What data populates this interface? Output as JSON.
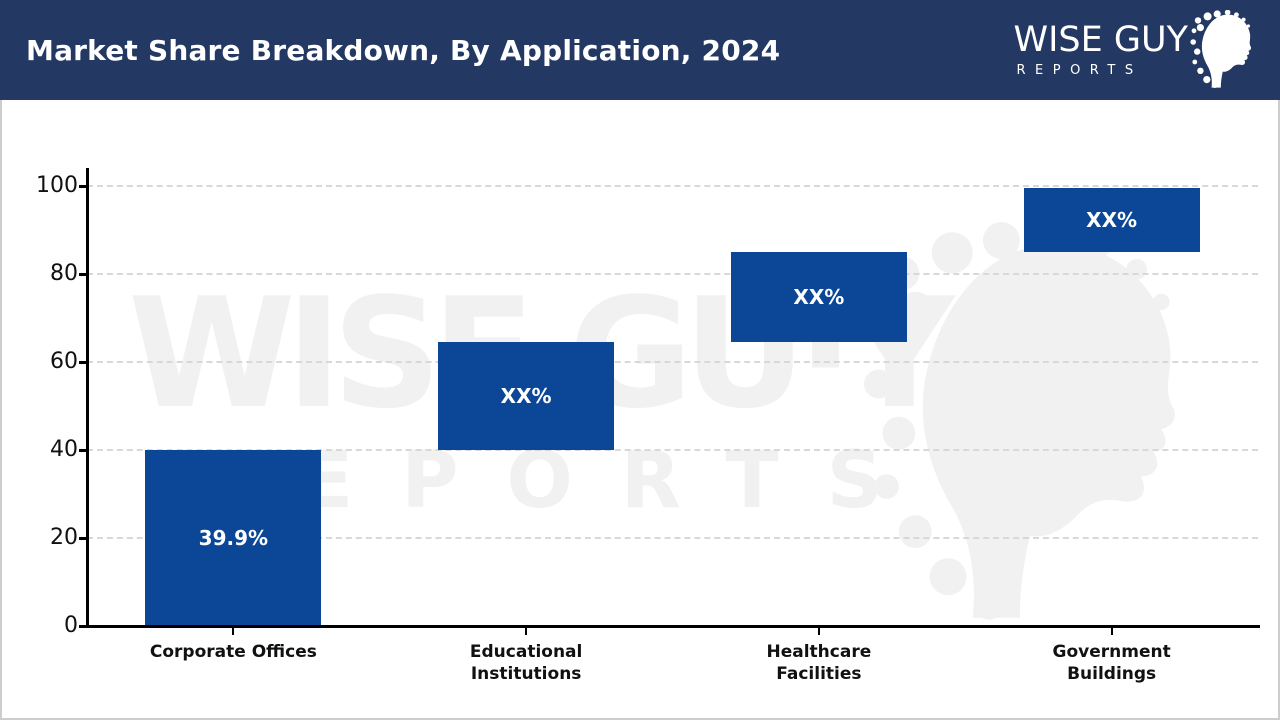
{
  "header": {
    "title": "Market Share Breakdown, By Application, 2024",
    "logo": {
      "wordmark": "WISE GUY",
      "subtext": "REPORTS"
    }
  },
  "watermark": {
    "line1": "WISE GU·Y",
    "line2": "REPORTS"
  },
  "chart_data": {
    "type": "bar",
    "variant": "waterfall",
    "title": "Market Share Breakdown, By Application, 2024",
    "unit": "%",
    "categories": [
      "Corporate Offices",
      "Educational Institutions",
      "Healthcare Facilities",
      "Government Buildings"
    ],
    "categories_lines": [
      [
        "Corporate Offices"
      ],
      [
        "Educational",
        "Institutions"
      ],
      [
        "Healthcare",
        "Facilities"
      ],
      [
        "Government",
        "Buildings"
      ]
    ],
    "series": [
      {
        "name": "Market share",
        "starts": [
          0,
          39.9,
          64.5,
          85.0
        ],
        "ends": [
          39.9,
          64.5,
          85.0,
          99.6
        ],
        "labels": [
          "39.9%",
          "XX%",
          "XX%",
          "XX%"
        ]
      }
    ],
    "yticks": [
      0,
      20,
      40,
      60,
      80,
      100
    ],
    "ylim": [
      0,
      104
    ],
    "grid": "horizontal-dashed",
    "legend": "none",
    "colors": {
      "bar": "#0B4796",
      "bar_label": "#ffffff",
      "grid": "#d8d8d8",
      "axis": "#000000",
      "tick_label": "#111111",
      "header_bg": "#233862",
      "watermark": "#f1f1f1"
    }
  }
}
